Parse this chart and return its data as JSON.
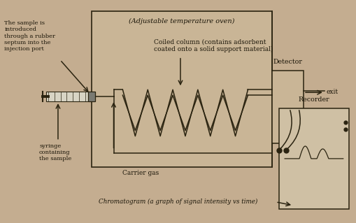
{
  "bg_color": "#c4ad90",
  "line_color": "#2a2310",
  "oven_facecolor": "#c9b596",
  "rec_facecolor": "#cfc0a4",
  "text_color": "#1a1508",
  "labels": {
    "oven_title": "(Adjustable temperature oven)",
    "coil_label": "Coiled column (contains adsorbent\ncoated onto a solid support material)",
    "detector": "Detector",
    "exit": "exit",
    "syringe_label": "syringe\ncontaining\nthe sample",
    "injection_label": "The sample is\nintroduced\nthrough a rubber\nseptum into the\ninjection port",
    "carrier_gas": "Carrier gas",
    "chromatogram": "Chromatogram (a graph of signal intensity vs time)",
    "recorder": "Recorder"
  },
  "figsize": [
    5.09,
    3.19
  ],
  "dpi": 100
}
